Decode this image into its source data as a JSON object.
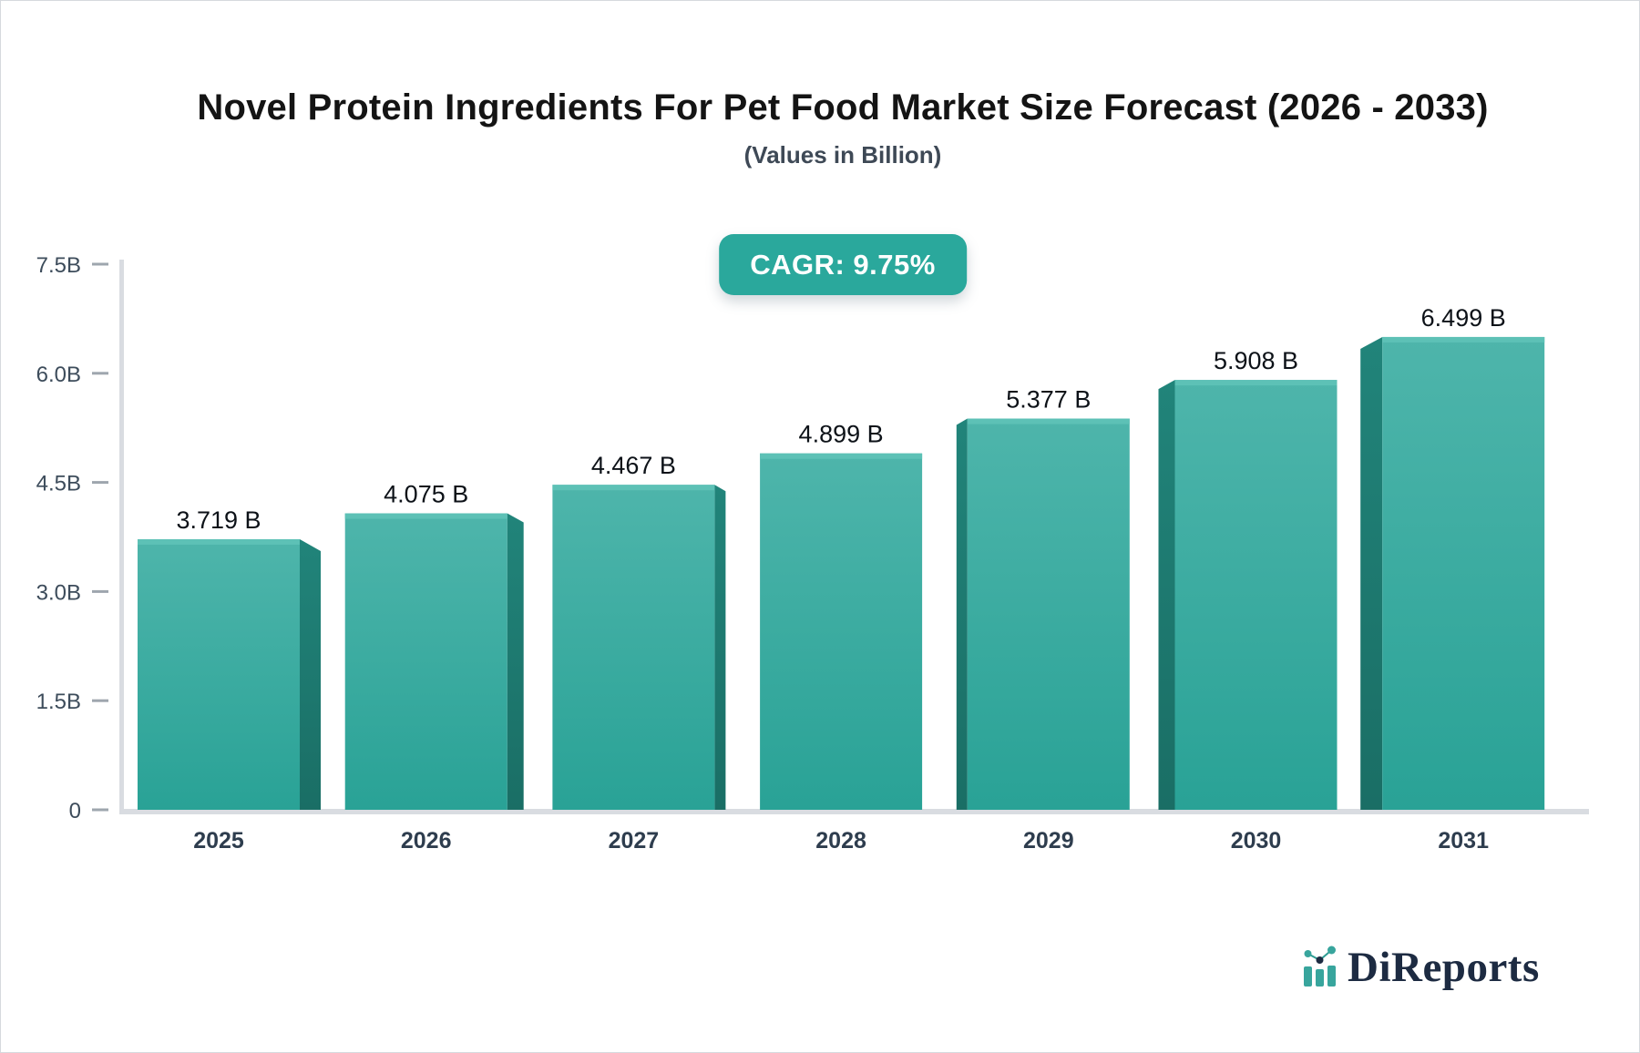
{
  "page": {
    "background": "#ffffff",
    "border_color": "#d6d9de"
  },
  "chart_data": {
    "type": "bar",
    "title": "Novel Protein Ingredients For Pet Food Market Size Forecast (2026 - 2033)",
    "subtitle": "(Values in Billion)",
    "cagr_badge": "CAGR: 9.75%",
    "categories": [
      "2025",
      "2026",
      "2027",
      "2028",
      "2029",
      "2030",
      "2031"
    ],
    "values": [
      3.719,
      4.075,
      4.467,
      4.899,
      5.377,
      5.908,
      6.499
    ],
    "value_labels": [
      "3.719 B",
      "4.075 B",
      "4.467 B",
      "4.899 B",
      "5.377 B",
      "5.908 B",
      "6.499 B"
    ],
    "unit": "Billion",
    "ylim": [
      0,
      7.5
    ],
    "yticks": [
      0,
      1.5,
      3.0,
      4.5,
      6.0,
      7.5
    ],
    "ytick_labels": [
      "0",
      "1.5B",
      "3.0B",
      "4.5B",
      "6.0B",
      "7.5B"
    ],
    "grid": false,
    "legend": "none",
    "bar_style": "3d-perspective-center-vanishing",
    "colors": {
      "bar_front_top": "#4eb5ab",
      "bar_front_bottom": "#29a296",
      "bar_top_highlight": "#5dc1b6",
      "bar_side_top": "#21847a",
      "bar_side_bottom": "#1a6e65",
      "axis_line": "#d9dce1",
      "tick_mark": "#9ea6ae",
      "ytick_text": "#3d4c5b",
      "xtick_text": "#2e3d4e",
      "value_text": "#0d1218",
      "badge_bg": "#2aa89c",
      "badge_text": "#ffffff"
    }
  },
  "branding": {
    "logo_text": "DiReports",
    "logo_navy": "#1d2b42",
    "logo_teal": "#38a59d",
    "logo_line": "#2f9c93"
  }
}
